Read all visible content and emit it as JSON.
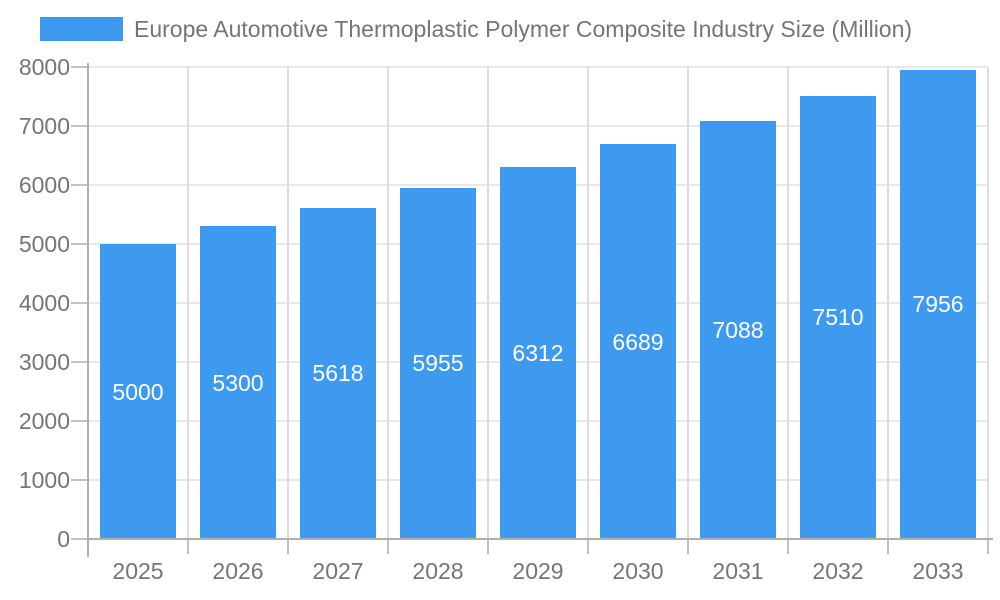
{
  "chart_data": {
    "type": "bar",
    "title": "Europe Automotive Thermoplastic Polymer Composite Industry Size (Million)",
    "categories": [
      "2025",
      "2026",
      "2027",
      "2028",
      "2029",
      "2030",
      "2031",
      "2032",
      "2033"
    ],
    "values": [
      5000,
      5300,
      5618,
      5955,
      6312,
      6689,
      7088,
      7510,
      7956
    ],
    "xlabel": "",
    "ylabel": "",
    "ylim": [
      0,
      8000
    ],
    "ytick_step": 1000,
    "ytick_labels": [
      "0",
      "1000",
      "2000",
      "3000",
      "4000",
      "5000",
      "6000",
      "7000",
      "8000"
    ],
    "grid": true,
    "legend_position": "top-left",
    "bar_labels_inside": true
  },
  "colors": {
    "bar": "#3D9AEE",
    "bar_label_text": "#FFFFFF",
    "axis_text": "#757575",
    "axis_line": "#B0B0B0",
    "tick": "#C2C2C2",
    "grid_horizontal": "#E8E8E8",
    "grid_vertical": "#DCDCDC",
    "background": "#FFFFFF"
  }
}
